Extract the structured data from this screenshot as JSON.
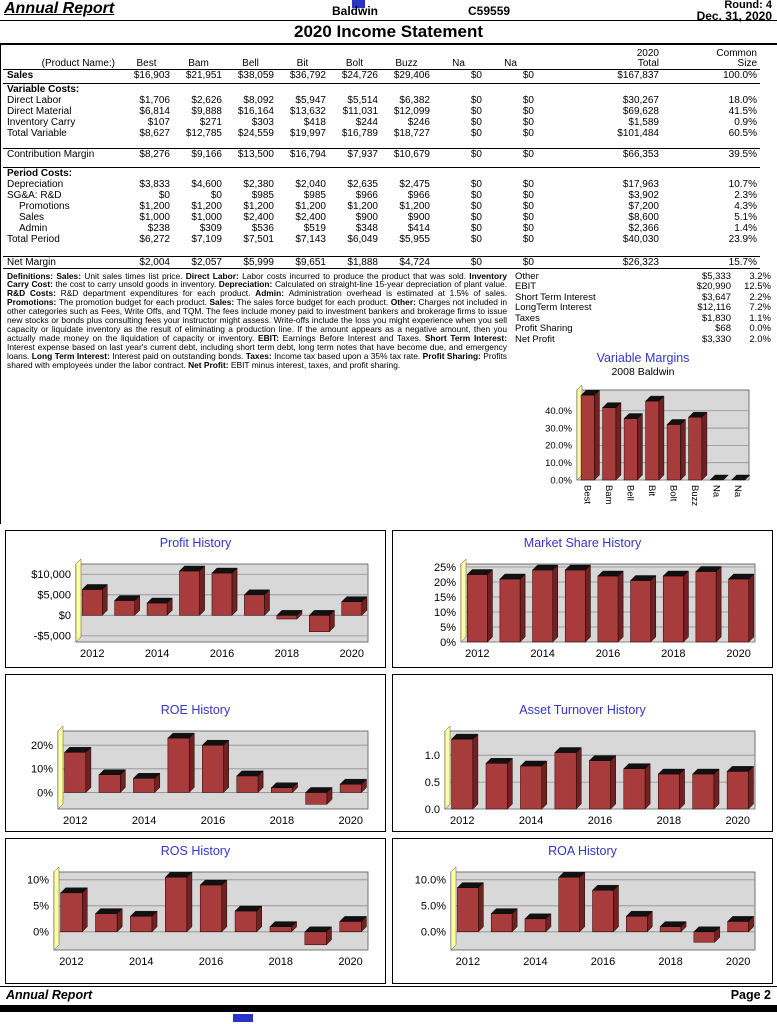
{
  "page": {
    "footer_title": "Annual Report",
    "footer_page": "Page 2",
    "accent_blue": "#3535c8",
    "bar_red": "#a83b3b"
  },
  "header": {
    "title": "Annual Report",
    "company": "Baldwin",
    "code": "C59559",
    "round": "Round: 4",
    "date": "Dec. 31, 2020"
  },
  "statement": {
    "title": "2020 Income Statement",
    "product_name_label": "(Product Name:)",
    "products": [
      "Best",
      "Bam",
      "Bell",
      "Bit",
      "Bolt",
      "Buzz",
      "Na",
      "Na"
    ],
    "total_header": [
      "2020",
      "Total"
    ],
    "common_header": [
      "Common",
      "Size"
    ],
    "rows": [
      {
        "label": "Sales",
        "b": true,
        "values": [
          "$16,903",
          "$21,951",
          "$38,059",
          "$36,792",
          "$24,726",
          "$29,406",
          "$0",
          "$0"
        ],
        "total": "$167,837",
        "common": "100.0%"
      },
      {
        "spacer": 3
      },
      {
        "label": "Variable Costs:",
        "b": true,
        "rule": true
      },
      {
        "label": "Direct Labor",
        "values": [
          "$1,706",
          "$2,626",
          "$8,092",
          "$5,947",
          "$5,514",
          "$6,382",
          "$0",
          "$0"
        ],
        "total": "$30,267",
        "common": "18.0%"
      },
      {
        "label": "Direct Material",
        "values": [
          "$6,814",
          "$9,888",
          "$16,164",
          "$13,632",
          "$11,031",
          "$12,099",
          "$0",
          "$0"
        ],
        "total": "$69,628",
        "common": "41.5%"
      },
      {
        "label": "Inventory Carry",
        "values": [
          "$107",
          "$271",
          "$303",
          "$418",
          "$244",
          "$246",
          "$0",
          "$0"
        ],
        "total": "$1,589",
        "common": "0.9%"
      },
      {
        "label": "Total Variable",
        "values": [
          "$8,627",
          "$12,785",
          "$24,559",
          "$19,997",
          "$16,789",
          "$18,727",
          "$0",
          "$0"
        ],
        "total": "$101,484",
        "common": "60.5%"
      },
      {
        "spacer": 9
      },
      {
        "label": "Contribution Margin",
        "rule": true,
        "values": [
          "$8,276",
          "$9,166",
          "$13,500",
          "$16,794",
          "$7,937",
          "$10,679",
          "$0",
          "$0"
        ],
        "total": "$66,353",
        "common": "39.5%"
      },
      {
        "spacer": 8
      },
      {
        "label": "Period Costs:",
        "b": true,
        "rule": true
      },
      {
        "label": "Depreciation",
        "values": [
          "$3,833",
          "$4,600",
          "$2,380",
          "$2,040",
          "$2,635",
          "$2,475",
          "$0",
          "$0"
        ],
        "total": "$17,963",
        "common": "10.7%"
      },
      {
        "label": "SG&A: R&D",
        "values": [
          "$0",
          "$0",
          "$985",
          "$985",
          "$966",
          "$966",
          "$0",
          "$0"
        ],
        "total": "$3,902",
        "common": "2.3%"
      },
      {
        "label": "Promotions",
        "indent": true,
        "values": [
          "$1,200",
          "$1,200",
          "$1,200",
          "$1,200",
          "$1,200",
          "$1,200",
          "$0",
          "$0"
        ],
        "total": "$7,200",
        "common": "4.3%"
      },
      {
        "label": "Sales",
        "indent": true,
        "values": [
          "$1,000",
          "$1,000",
          "$2,400",
          "$2,400",
          "$900",
          "$900",
          "$0",
          "$0"
        ],
        "total": "$8,600",
        "common": "5.1%"
      },
      {
        "label": "Admin",
        "indent": true,
        "values": [
          "$238",
          "$309",
          "$536",
          "$519",
          "$348",
          "$414",
          "$0",
          "$0"
        ],
        "total": "$2,366",
        "common": "1.4%"
      },
      {
        "label": "Total Period",
        "values": [
          "$6,272",
          "$7,109",
          "$7,501",
          "$7,143",
          "$6,049",
          "$5,955",
          "$0",
          "$0"
        ],
        "total": "$40,030",
        "common": "23.9%"
      },
      {
        "spacer": 11
      },
      {
        "label": "Net Margin",
        "rule": true,
        "values": [
          "$2,004",
          "$2,057",
          "$5,999",
          "$9,651",
          "$1,888",
          "$4,724",
          "$0",
          "$0"
        ],
        "total": "$26,323",
        "common": "15.7%"
      }
    ]
  },
  "summary": {
    "rows": [
      {
        "label": "Other",
        "value": "$5,333",
        "pct": "3.2%"
      },
      {
        "label": "EBIT",
        "value": "$20,990",
        "pct": "12.5%"
      },
      {
        "label": "Short Term Interest",
        "value": "$3,647",
        "pct": "2.2%"
      },
      {
        "label": "LongTerm Interest",
        "value": "$12,116",
        "pct": "7.2%"
      },
      {
        "label": "Taxes",
        "value": "$1,830",
        "pct": "1.1%"
      },
      {
        "label": "Profit Sharing",
        "value": "$68",
        "pct": "0.0%"
      },
      {
        "label": "Net Profit",
        "value": "$3,330",
        "pct": "2.0%"
      }
    ]
  },
  "definitions": {
    "segments": [
      {
        "t": "Definitions: ",
        "b": true
      },
      {
        "t": "Sales: ",
        "b": true
      },
      {
        "t": "Unit sales times list price. "
      },
      {
        "t": "Direct Labor: ",
        "b": true
      },
      {
        "t": "Labor costs incurred to produce the product that was sold. "
      },
      {
        "t": "Inventory Carry Cost: ",
        "b": true
      },
      {
        "t": "the cost to carry unsold goods in inventory. "
      },
      {
        "t": "Depreciation: ",
        "b": true
      },
      {
        "t": "Calculated on straight-line 15-year depreciation of plant value. "
      },
      {
        "t": "R&D Costs: ",
        "b": true
      },
      {
        "t": "R&D department expenditures for each product. "
      },
      {
        "t": "Admin: ",
        "b": true
      },
      {
        "t": "Administration overhead is estimated at 1.5% of sales. "
      },
      {
        "t": "Promotions: ",
        "b": true
      },
      {
        "t": "The promotion budget for each product. "
      },
      {
        "t": "Sales: ",
        "b": true
      },
      {
        "t": "The sales force budget for each product. "
      },
      {
        "t": "Other: ",
        "b": true
      },
      {
        "t": "Charges not included in other categories such as Fees, Write Offs, and TQM. The fees include money paid to investment bankers and brokerage firms to issue new stocks or bonds plus consulting fees your instructor might assess. Write-offs include the loss you might experience when you sell capacity or liquidate inventory as the result of eliminating a production line. If the amount appears as a negative amount, then you actually made money on the liquidation of capacity or inventory. "
      },
      {
        "t": "EBIT: ",
        "b": true
      },
      {
        "t": "Earnings Before Interest and Taxes. "
      },
      {
        "t": "Short Term Interest: ",
        "b": true
      },
      {
        "t": "Interest expense based on last year's current debt, including short term debt, long term notes that have become due, and emergency loans. "
      },
      {
        "t": "Long Term Interest: ",
        "b": true
      },
      {
        "t": "Interest paid on outstanding bonds. "
      },
      {
        "t": "Taxes: ",
        "b": true
      },
      {
        "t": "Income tax based upon a 35% tax rate. "
      },
      {
        "t": "Profit Sharing: ",
        "b": true
      },
      {
        "t": "Profits shared with employees under the labor contract. "
      },
      {
        "t": "Net Profit: ",
        "b": true
      },
      {
        "t": "EBIT minus interest, taxes, and profit sharing."
      }
    ]
  },
  "chart_data": [
    {
      "key": "variable_margins",
      "type": "bar",
      "title": "Variable Margins",
      "subtitle": "2008 Baldwin",
      "categories": [
        "Best",
        "Bam",
        "Bell",
        "Bit",
        "Bolt",
        "Buzz",
        "Na",
        "Na"
      ],
      "values": [
        49.0,
        41.8,
        35.5,
        45.6,
        32.1,
        36.3,
        0,
        0
      ],
      "xlabel": "",
      "ylabel": "",
      "ylim": [
        0,
        52
      ],
      "grid": true,
      "legend": "none",
      "rotate_x_labels": true,
      "label_every": 1,
      "yticks": [
        {
          "v": 0,
          "label": "0.0%"
        },
        {
          "v": 10,
          "label": "10.0%"
        },
        {
          "v": 20,
          "label": "20.0%"
        },
        {
          "v": 30,
          "label": "30.0%"
        },
        {
          "v": 40,
          "label": "40.0%"
        }
      ]
    },
    {
      "key": "profit",
      "type": "bar",
      "title": "Profit History",
      "categories": [
        "2012",
        "2013",
        "2014",
        "2015",
        "2016",
        "2017",
        "2018",
        "2019",
        "2020"
      ],
      "values": [
        6300,
        3600,
        3000,
        10800,
        10300,
        5000,
        -900,
        -4000,
        3330
      ],
      "xlabel": "",
      "ylabel": "",
      "ylim": [
        -6500,
        12500
      ],
      "grid": true,
      "legend": "none",
      "label_every": 2,
      "yticks": [
        {
          "v": -5000,
          "label": "-$5,000"
        },
        {
          "v": 0,
          "label": "$0"
        },
        {
          "v": 5000,
          "label": "$5,000"
        },
        {
          "v": 10000,
          "label": "$10,000"
        }
      ]
    },
    {
      "key": "market_share",
      "type": "bar",
      "title": "Market Share History",
      "categories": [
        "2012",
        "2013",
        "2014",
        "2015",
        "2016",
        "2017",
        "2018",
        "2019",
        "2020"
      ],
      "values": [
        22.5,
        21,
        24,
        24,
        22,
        20.5,
        22,
        23.5,
        21
      ],
      "xlabel": "",
      "ylabel": "",
      "ylim": [
        0,
        26
      ],
      "grid": true,
      "legend": "none",
      "label_every": 2,
      "yticks": [
        {
          "v": 0,
          "label": "0%"
        },
        {
          "v": 5,
          "label": "5%"
        },
        {
          "v": 10,
          "label": "10%"
        },
        {
          "v": 15,
          "label": "15%"
        },
        {
          "v": 20,
          "label": "20%"
        },
        {
          "v": 25,
          "label": "25%"
        }
      ]
    },
    {
      "key": "roe",
      "type": "bar",
      "title": "ROE History",
      "categories": [
        "2012",
        "2013",
        "2014",
        "2015",
        "2016",
        "2017",
        "2018",
        "2019",
        "2020"
      ],
      "values": [
        17,
        7.5,
        6,
        23,
        20,
        7,
        2,
        -5,
        3.5
      ],
      "xlabel": "",
      "ylabel": "",
      "ylim": [
        -7,
        26
      ],
      "grid": true,
      "legend": "none",
      "label_every": 2,
      "yticks": [
        {
          "v": 0,
          "label": "0%"
        },
        {
          "v": 10,
          "label": "10%"
        },
        {
          "v": 20,
          "label": "20%"
        }
      ]
    },
    {
      "key": "asset_turnover",
      "type": "bar",
      "title": "Asset Turnover History",
      "categories": [
        "2012",
        "2013",
        "2014",
        "2015",
        "2016",
        "2017",
        "2018",
        "2019",
        "2020"
      ],
      "values": [
        1.3,
        0.85,
        0.8,
        1.05,
        0.9,
        0.75,
        0.65,
        0.65,
        0.7
      ],
      "xlabel": "",
      "ylabel": "",
      "ylim": [
        0,
        1.45
      ],
      "grid": true,
      "legend": "none",
      "label_every": 2,
      "yticks": [
        {
          "v": 0,
          "label": "0.0"
        },
        {
          "v": 0.5,
          "label": "0.5"
        },
        {
          "v": 1,
          "label": "1.0"
        }
      ]
    },
    {
      "key": "ros",
      "type": "bar",
      "title": "ROS History",
      "categories": [
        "2012",
        "2013",
        "2014",
        "2015",
        "2016",
        "2017",
        "2018",
        "2019",
        "2020"
      ],
      "values": [
        7.5,
        3.5,
        3,
        10.5,
        9,
        4,
        1,
        -2.5,
        2
      ],
      "xlabel": "",
      "ylabel": "",
      "ylim": [
        -3.5,
        11.5
      ],
      "grid": true,
      "legend": "none",
      "label_every": 2,
      "yticks": [
        {
          "v": 0,
          "label": "0%"
        },
        {
          "v": 5,
          "label": "5%"
        },
        {
          "v": 10,
          "label": "10%"
        }
      ]
    },
    {
      "key": "roa",
      "type": "bar",
      "title": "ROA History",
      "categories": [
        "2012",
        "2013",
        "2014",
        "2015",
        "2016",
        "2017",
        "2018",
        "2019",
        "2020"
      ],
      "values": [
        8.5,
        3.5,
        2.5,
        10.5,
        8,
        3,
        1,
        -2,
        2
      ],
      "xlabel": "",
      "ylabel": "",
      "ylim": [
        -3.5,
        11.5
      ],
      "grid": true,
      "legend": "none",
      "label_every": 2,
      "yticks": [
        {
          "v": 0,
          "label": "0.0%"
        },
        {
          "v": 5,
          "label": "5.0%"
        },
        {
          "v": 10,
          "label": "10.0%"
        }
      ]
    }
  ]
}
